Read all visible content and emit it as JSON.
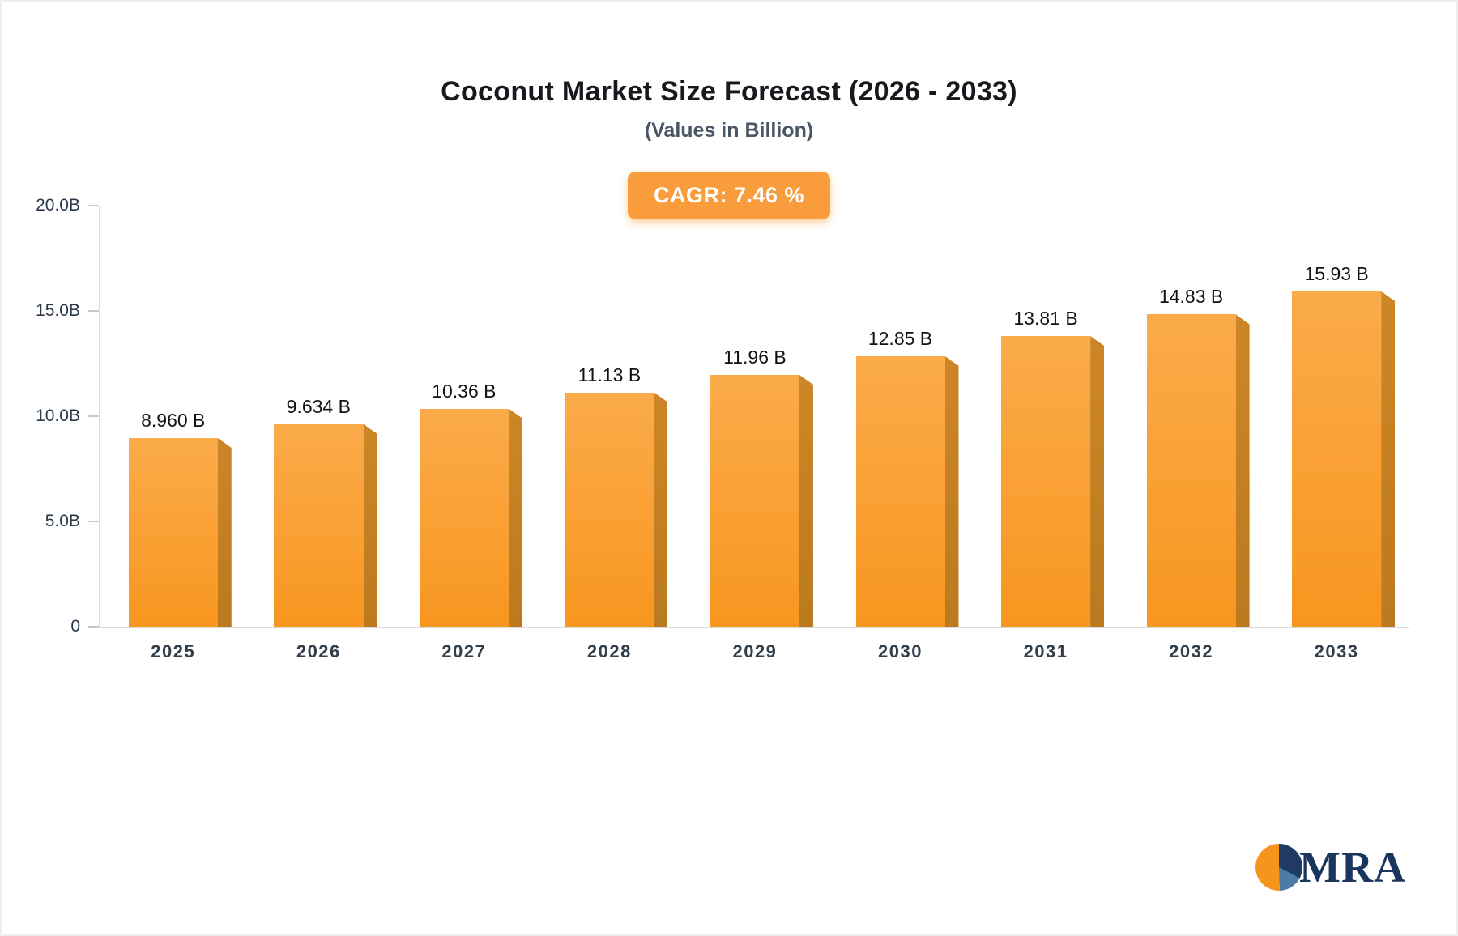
{
  "chart_data": {
    "type": "bar",
    "title": "Coconut Market Size Forecast (2026 - 2033)",
    "subtitle": "(Values in Billion)",
    "cagr_label": "CAGR: 7.46 %",
    "categories": [
      "2025",
      "2026",
      "2027",
      "2028",
      "2029",
      "2030",
      "2031",
      "2032",
      "2033"
    ],
    "values": [
      8.96,
      9.634,
      10.36,
      11.13,
      11.96,
      12.85,
      13.81,
      14.83,
      15.93
    ],
    "value_labels": [
      "8.960 B",
      "9.634 B",
      "10.36 B",
      "11.13 B",
      "11.96 B",
      "12.85 B",
      "13.81 B",
      "14.83 B",
      "15.93 B"
    ],
    "xlabel": "",
    "ylabel": "",
    "ylim": [
      0,
      20
    ],
    "yticks": [
      {
        "value": 20,
        "label": "20.0B"
      },
      {
        "value": 15,
        "label": "15.0B"
      },
      {
        "value": 10,
        "label": "10.0B"
      },
      {
        "value": 5,
        "label": "5.0B"
      },
      {
        "value": 0,
        "label": "0"
      }
    ],
    "grid": false,
    "legend": "none",
    "bar_color": "#f8961f",
    "bar_side_color": "#bb7a1e",
    "badge_color": "#f89c3c"
  },
  "logo": {
    "text": "MRA"
  }
}
